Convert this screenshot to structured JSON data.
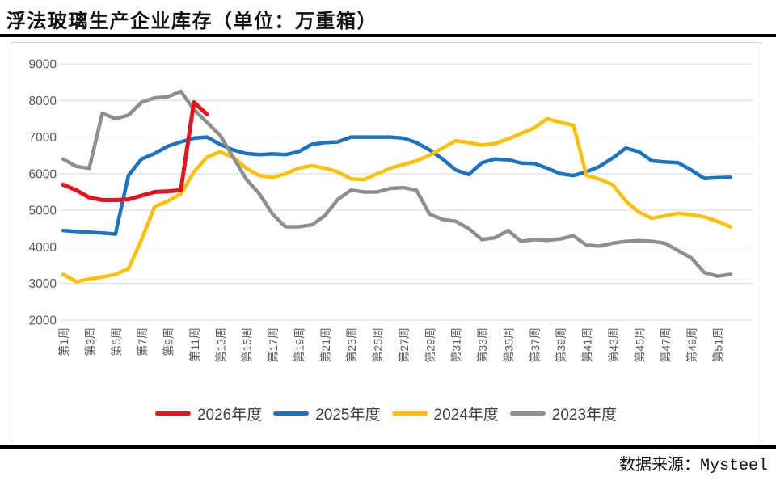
{
  "title": "浮法玻璃生产企业库存（单位：万重箱）",
  "source": "数据来源：Mysteel",
  "colors": {
    "red_2026": "#e8131d",
    "blue_2025": "#1b74c2",
    "yellow_2024": "#fec000",
    "gray_2023": "#8f8f8f",
    "gridline": "#d9d9d9",
    "axis_text": "#595959",
    "divider": "#000000"
  },
  "chart_data": {
    "type": "line",
    "title": "浮法玻璃生产企业库存（单位：万重箱）",
    "xlabel": "",
    "ylabel": "",
    "ylim": [
      2000,
      9000
    ],
    "y_ticks": [
      2000,
      3000,
      4000,
      5000,
      6000,
      7000,
      8000,
      9000
    ],
    "x_weeks": 52,
    "x_tick_labels": [
      "第1周",
      "第3周",
      "第5周",
      "第7周",
      "第9周",
      "第11周",
      "第13周",
      "第15周",
      "第17周",
      "第19周",
      "第21周",
      "第23周",
      "第25周",
      "第27周",
      "第29周",
      "第31周",
      "第33周",
      "第35周",
      "第37周",
      "第39周",
      "第41周",
      "第43周",
      "第45周",
      "第47周",
      "第49周",
      "第51周"
    ],
    "grid": "horizontal",
    "legend_position": "bottom",
    "series": [
      {
        "name": "2026年度",
        "color": "#e8131d",
        "values": [
          5700,
          5550,
          5350,
          5280,
          5280,
          5300,
          5400,
          5500,
          5520,
          5550,
          7950,
          7620
        ]
      },
      {
        "name": "2025年度",
        "color": "#1b74c2",
        "values": [
          4450,
          4420,
          4400,
          4380,
          4350,
          5950,
          6400,
          6550,
          6750,
          6870,
          6970,
          7000,
          6800,
          6650,
          6550,
          6520,
          6540,
          6520,
          6600,
          6800,
          6850,
          6870,
          7000,
          7000,
          7000,
          7000,
          6970,
          6850,
          6650,
          6400,
          6100,
          5980,
          6300,
          6400,
          6380,
          6290,
          6280,
          6150,
          6000,
          5950,
          6050,
          6200,
          6430,
          6700,
          6600,
          6350,
          6320,
          6300,
          6100,
          5870,
          5890,
          5900
        ]
      },
      {
        "name": "2024年度",
        "color": "#fec000",
        "values": [
          3250,
          3050,
          3120,
          3180,
          3250,
          3400,
          4200,
          5100,
          5250,
          5450,
          6050,
          6450,
          6600,
          6450,
          6150,
          5950,
          5890,
          6000,
          6150,
          6220,
          6150,
          6050,
          5860,
          5840,
          6000,
          6150,
          6250,
          6350,
          6500,
          6700,
          6900,
          6850,
          6780,
          6820,
          6950,
          7100,
          7250,
          7500,
          7400,
          7320,
          5950,
          5850,
          5700,
          5250,
          4950,
          4780,
          4850,
          4920,
          4880,
          4820,
          4700,
          4550
        ]
      },
      {
        "name": "2023年度",
        "color": "#8f8f8f",
        "values": [
          6400,
          6200,
          6150,
          7650,
          7500,
          7600,
          7950,
          8070,
          8100,
          8250,
          7750,
          7400,
          7050,
          6450,
          5850,
          5450,
          4900,
          4550,
          4550,
          4600,
          4850,
          5300,
          5550,
          5500,
          5500,
          5600,
          5620,
          5550,
          4900,
          4750,
          4700,
          4500,
          4200,
          4250,
          4450,
          4150,
          4200,
          4180,
          4220,
          4300,
          4050,
          4020,
          4100,
          4150,
          4170,
          4150,
          4100,
          3900,
          3700,
          3300,
          3200,
          3250
        ]
      }
    ]
  }
}
